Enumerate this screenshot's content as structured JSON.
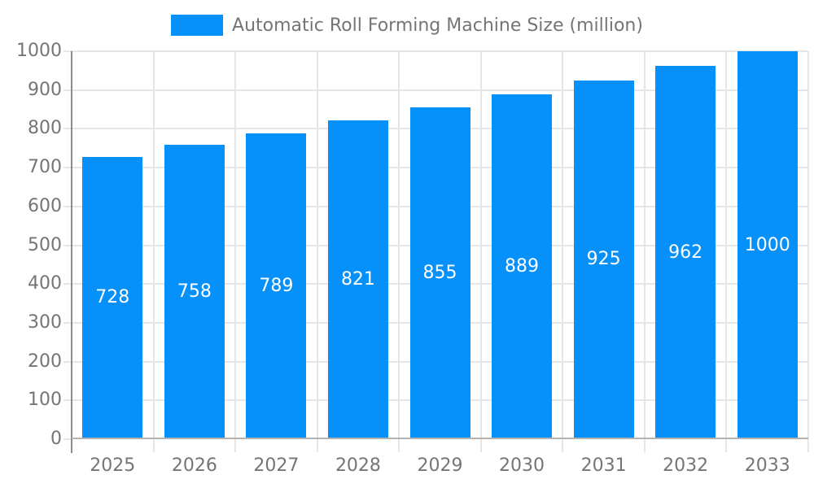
{
  "legend": {
    "label": "Automatic Roll Forming Machine Size (million)"
  },
  "chart_data": {
    "type": "bar",
    "title": "Automatic Roll Forming Machine Size (million)",
    "categories": [
      "2025",
      "2026",
      "2027",
      "2028",
      "2029",
      "2030",
      "2031",
      "2032",
      "2033"
    ],
    "values": [
      728,
      758,
      789,
      821,
      855,
      889,
      925,
      962,
      1000
    ],
    "series": [
      {
        "name": "Automatic Roll Forming Machine Size (million)",
        "values": [
          728,
          758,
          789,
          821,
          855,
          889,
          925,
          962,
          1000
        ]
      }
    ],
    "xlabel": "",
    "ylabel": "",
    "ylim": [
      0,
      1000
    ],
    "ytick_step": 100,
    "grid": true,
    "legend_position": "top-center",
    "value_labels": "inside-center",
    "colors": {
      "bar": "#0690fa",
      "grid": "#e6e6e6",
      "axis_line": "#8c8c8c",
      "baseline": "#b3b3b3",
      "axis_text": "#757575",
      "value_label_text": "#ffffff"
    }
  }
}
